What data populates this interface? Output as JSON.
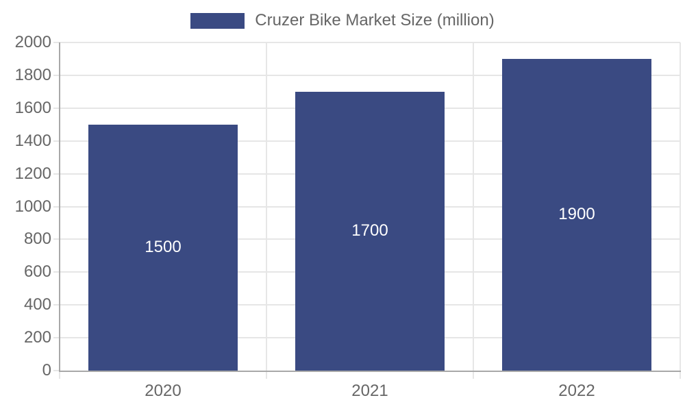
{
  "chart_data": {
    "type": "bar",
    "title": "Cruzer Bike Market Size (million)",
    "legend": {
      "label": "Cruzer Bike Market Size (million)",
      "position": "top-center"
    },
    "categories": [
      "2020",
      "2021",
      "2022"
    ],
    "values": [
      1500,
      1700,
      1900
    ],
    "value_labels": [
      "1500",
      "1700",
      "1900"
    ],
    "xlabel": "",
    "ylabel": "",
    "ylim": [
      0,
      2000
    ],
    "ytick_step": 200,
    "yticks": [
      0,
      200,
      400,
      600,
      800,
      1000,
      1200,
      1400,
      1600,
      1800,
      2000
    ],
    "grid": true,
    "value_labels_inside_bars": true,
    "colors": {
      "bar": "#3A4A82",
      "value_label": "#FFFFFF",
      "axis_text": "#666666",
      "gridline": "#E6E6E6",
      "axis_line": "#A8A8A8",
      "background": "#FFFFFF"
    }
  }
}
